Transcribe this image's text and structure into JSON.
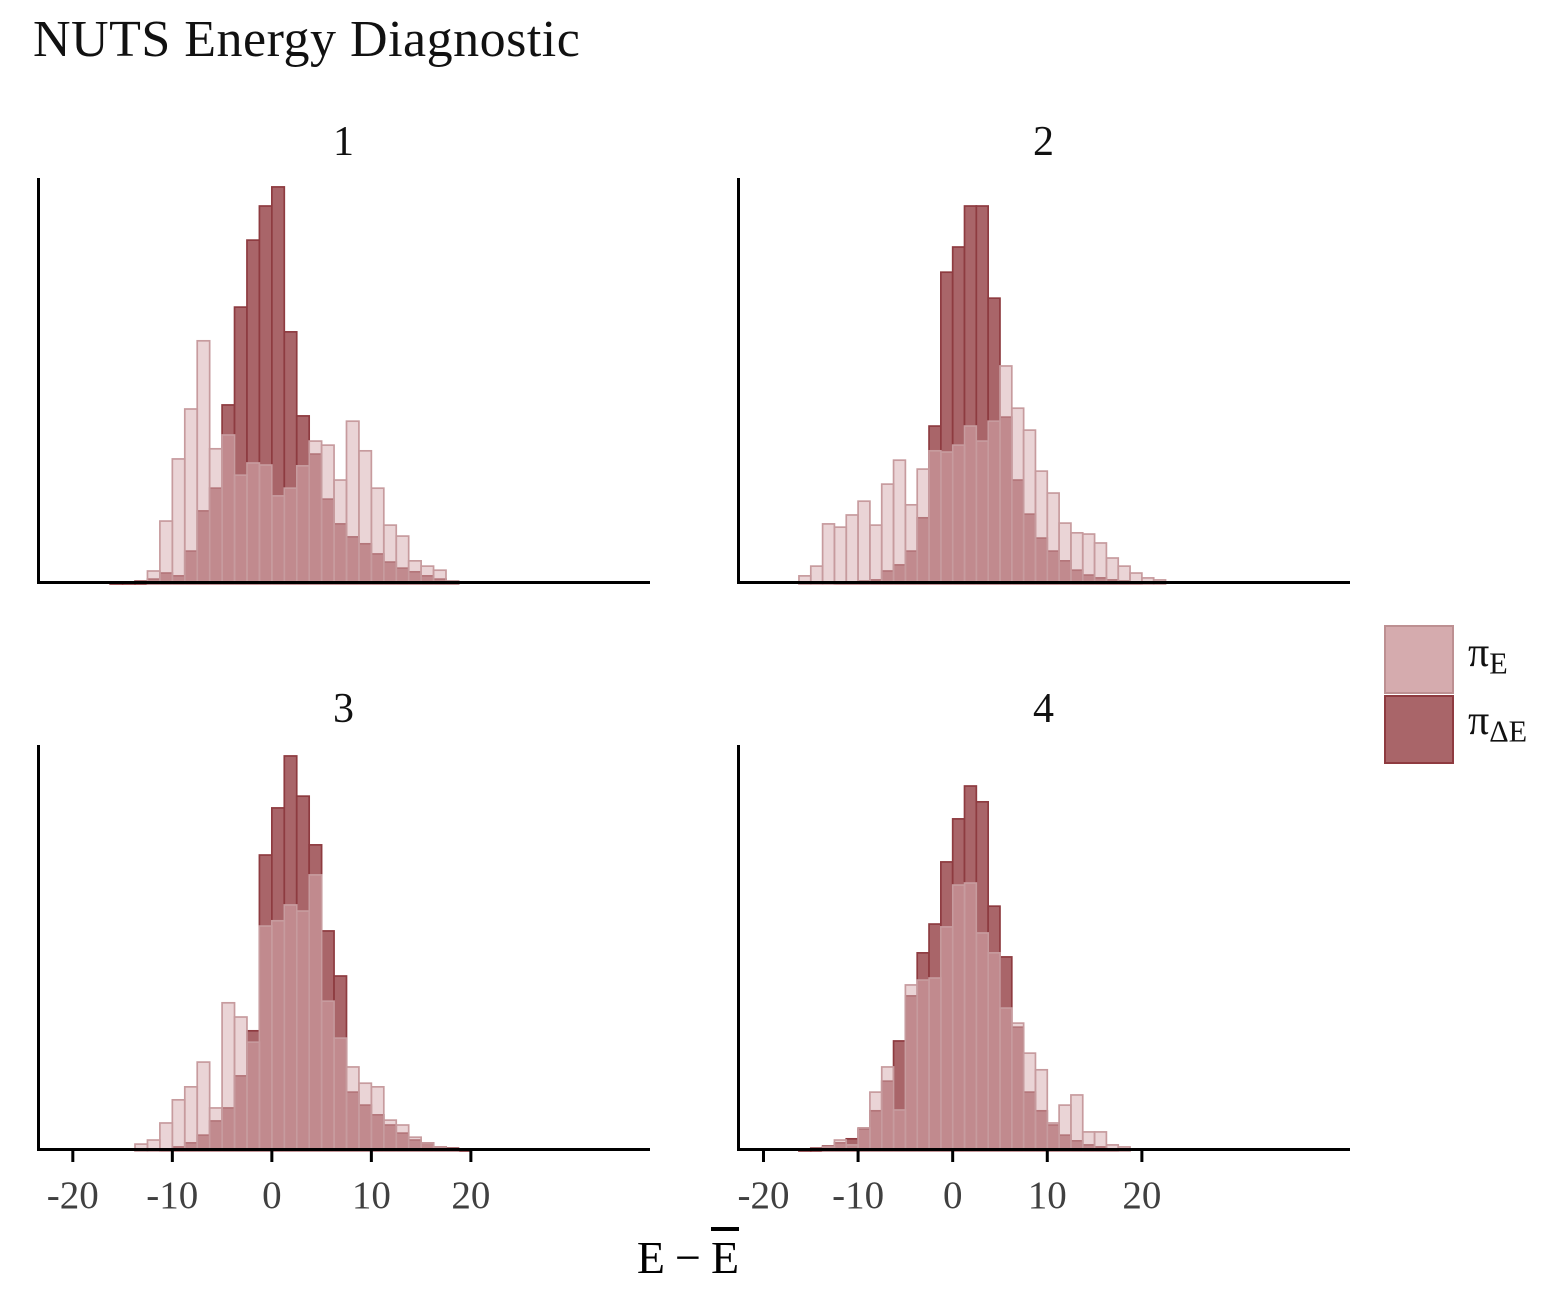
{
  "title": "NUTS Energy Diagnostic",
  "x_axis": {
    "tick_values": [
      -20,
      -10,
      0,
      10,
      20
    ],
    "tick_labels": [
      "-20",
      "-10",
      "0",
      "10",
      "20"
    ],
    "label": {
      "lhs": "E",
      "minus": "−",
      "rhs_overlined": "E"
    }
  },
  "y_axis": {
    "tick_labels": [],
    "note": "axis line only, no ticks or labels"
  },
  "legend": {
    "items": [
      {
        "symbol": "π",
        "subscript": "E",
        "swatch_fill": "#D5ABAE",
        "swatch_stroke": "#BD9092"
      },
      {
        "symbol": "π",
        "subscript": "ΔE",
        "swatch_fill": "#A96569",
        "swatch_stroke": "#8E3B40"
      }
    ]
  },
  "style": {
    "background": "#ffffff",
    "axis_color": "#000000",
    "tick_label_color": "#404040",
    "series": {
      "pi_E": {
        "fill": "#D7ADB0",
        "fill_opacity": 0.52,
        "stroke": "#C79B9E",
        "stroke_width": 1.7
      },
      "pi_dE": {
        "fill": "#A96569",
        "fill_opacity": 1.0,
        "stroke": "#8E3B40",
        "stroke_width": 1.7
      }
    }
  },
  "chart_data": [
    {
      "type": "histogram-overlay",
      "panel": 1,
      "label": "1",
      "x_axis_range": [
        -23.6,
        38.0
      ],
      "show_x_ticks": false,
      "height_unit": "percent_of_panel_height",
      "series": [
        {
          "name": "pi_dE",
          "x0": -16.25,
          "binwidth": 1.25,
          "heights_pct": [
            0.5,
            0.5,
            0.7,
            1.2,
            2.7,
            2.0,
            8.1,
            18.0,
            23.6,
            44.1,
            68.2,
            84.7,
            93.1,
            97.8,
            62.1,
            41.4,
            32.0,
            20.9,
            14.8,
            11.6,
            9.9,
            7.4,
            5.4,
            3.9,
            3.0,
            2.0,
            1.2,
            0.7
          ]
        },
        {
          "name": "pi_E",
          "x0": -12.5,
          "binwidth": 1.25,
          "heights_pct": [
            3.2,
            15.5,
            30.8,
            43.1,
            59.9,
            33.3,
            36.7,
            26.8,
            29.8,
            29.3,
            21.7,
            23.6,
            29.1,
            35.2,
            34.2,
            25.6,
            40.1,
            32.8,
            23.6,
            14.5,
            11.8,
            5.7,
            4.4,
            3.4,
            0.7
          ]
        }
      ]
    },
    {
      "type": "histogram-overlay",
      "panel": 2,
      "label": "2",
      "x_axis_range": [
        -22.8,
        42.0
      ],
      "show_x_ticks": false,
      "height_unit": "percent_of_panel_height",
      "series": [
        {
          "name": "pi_dE",
          "x0": -12.5,
          "binwidth": 1.25,
          "heights_pct": [
            0.5,
            0.5,
            0.7,
            1.0,
            3.2,
            4.7,
            8.1,
            16.3,
            38.9,
            76.8,
            83.0,
            93.1,
            93.1,
            70.4,
            41.1,
            25.6,
            17.2,
            11.3,
            8.1,
            5.7,
            3.4,
            2.2,
            1.5,
            1.0,
            0.7,
            0.5
          ]
        },
        {
          "name": "pi_E",
          "x0": -16.25,
          "binwidth": 1.25,
          "heights_pct": [
            2.0,
            4.4,
            14.8,
            14.0,
            17.0,
            20.4,
            14.5,
            24.6,
            30.5,
            19.5,
            28.3,
            32.8,
            32.5,
            34.2,
            38.9,
            35.2,
            40.1,
            53.7,
            43.3,
            37.9,
            27.8,
            22.4,
            15.0,
            12.6,
            12.3,
            10.1,
            6.4,
            4.4,
            2.7,
            1.5,
            1.0
          ]
        }
      ]
    },
    {
      "type": "histogram-overlay",
      "panel": 3,
      "label": "3",
      "x_axis_range": [
        -23.6,
        38.0
      ],
      "show_x_ticks": true,
      "height_unit": "percent_of_panel_height",
      "series": [
        {
          "name": "pi_dE",
          "x0": -11.25,
          "binwidth": 1.25,
          "heights_pct": [
            0.5,
            1.0,
            2.0,
            3.9,
            7.4,
            10.6,
            18.5,
            29.6,
            72.9,
            84.5,
            97.3,
            87.4,
            75.4,
            54.2,
            43.1,
            14.5,
            11.3,
            8.9,
            6.4,
            4.4,
            2.7,
            2.0,
            1.0,
            0.7,
            0.5
          ]
        },
        {
          "name": "pi_E",
          "x0": -13.75,
          "binwidth": 1.25,
          "heights_pct": [
            1.7,
            2.7,
            6.9,
            12.6,
            15.8,
            21.9,
            10.6,
            36.5,
            33.0,
            26.8,
            55.4,
            56.7,
            60.6,
            59.1,
            68.0,
            36.9,
            27.8,
            20.7,
            16.7,
            15.8,
            7.6,
            6.4,
            3.4,
            2.0,
            1.0,
            0.5
          ]
        }
      ]
    },
    {
      "type": "histogram-overlay",
      "panel": 4,
      "label": "4",
      "x_axis_range": [
        -22.8,
        42.0
      ],
      "show_x_ticks": true,
      "height_unit": "percent_of_panel_height",
      "series": [
        {
          "name": "pi_dE",
          "x0": -16.25,
          "binwidth": 1.25,
          "heights_pct": [
            0.5,
            0.7,
            1.2,
            2.0,
            3.0,
            5.4,
            9.9,
            17.2,
            27.1,
            38.2,
            48.8,
            55.9,
            71.2,
            81.8,
            89.9,
            86.0,
            60.3,
            47.8,
            30.5,
            14.5,
            9.9,
            6.4,
            3.9,
            2.5,
            1.5,
            1.0,
            0.5
          ]
        },
        {
          "name": "pi_E",
          "x0": -13.75,
          "binwidth": 1.25,
          "heights_pct": [
            1.0,
            2.7,
            1.5,
            5.7,
            14.5,
            20.7,
            10.1,
            40.9,
            42.1,
            42.6,
            55.2,
            65.5,
            66.0,
            53.7,
            48.8,
            35.2,
            31.5,
            24.1,
            20.0,
            6.9,
            11.3,
            13.8,
            4.7,
            4.7,
            1.5,
            1.0
          ]
        }
      ]
    }
  ]
}
